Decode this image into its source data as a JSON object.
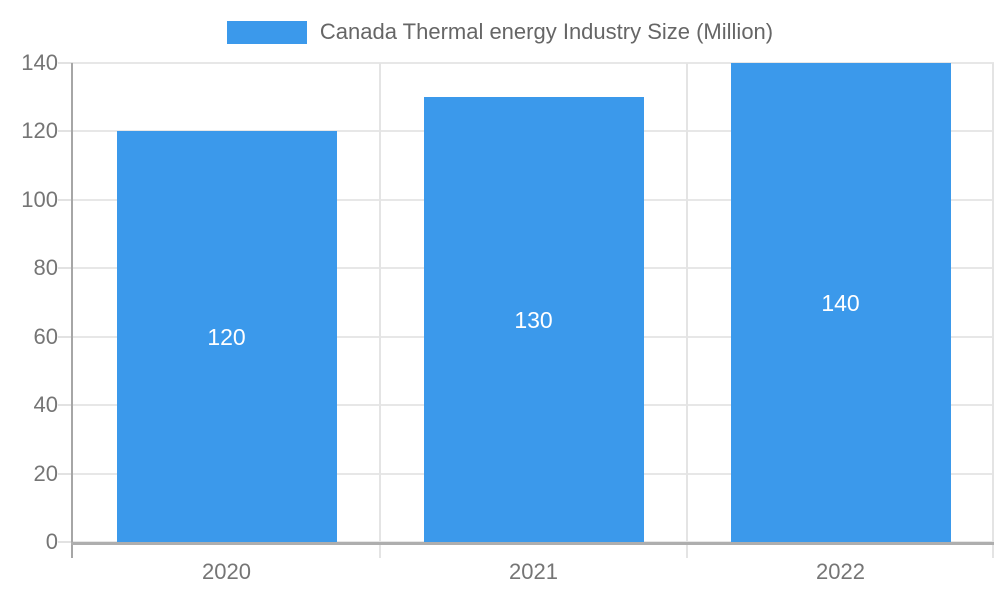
{
  "chart_data": {
    "type": "bar",
    "title": "Canada Thermal energy Industry Size (Million)",
    "legend": {
      "label": "Canada Thermal energy Industry Size (Million)",
      "position": "top-center"
    },
    "categories": [
      "2020",
      "2021",
      "2022"
    ],
    "series": [
      {
        "name": "Canada Thermal energy Industry Size (Million)",
        "values": [
          120,
          130,
          140
        ]
      }
    ],
    "bar_value_labels": [
      "120",
      "130",
      "140"
    ],
    "xlabel": "",
    "ylabel": "",
    "ylim": [
      0,
      140
    ],
    "yticks": [
      0,
      20,
      40,
      60,
      80,
      100,
      120,
      140
    ],
    "grid": "horizontal-and-category-boundaries",
    "bar_color": "#3b99eb",
    "value_label_color": "#ffffff",
    "tick_label_color": "#757575",
    "legend_text_color": "#666666"
  }
}
